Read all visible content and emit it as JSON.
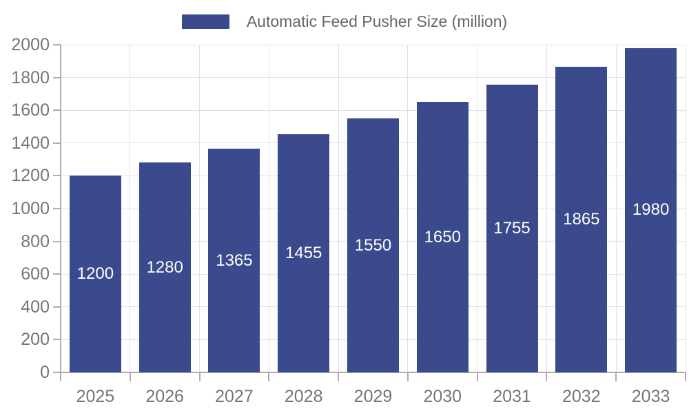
{
  "chart_data": {
    "type": "bar",
    "title": "Automatic Feed Pusher Size (million)",
    "legend": [
      "Automatic Feed Pusher Size (million)"
    ],
    "legend_position": "top",
    "categories": [
      "2025",
      "2026",
      "2027",
      "2028",
      "2029",
      "2030",
      "2031",
      "2032",
      "2033"
    ],
    "values": [
      1200,
      1280,
      1365,
      1455,
      1550,
      1650,
      1755,
      1865,
      1980
    ],
    "value_labels_shown": true,
    "xlabel": "",
    "ylabel": "",
    "ylim": [
      0,
      2000
    ],
    "yticks": [
      0,
      200,
      400,
      600,
      800,
      1000,
      1200,
      1400,
      1600,
      1800,
      2000
    ],
    "grid": true,
    "colors": {
      "bar": "#3A4A8C",
      "bar_value_label": "#FFFFFF",
      "grid": "#E0E0E0",
      "axis": "#ADADAD",
      "tick_label": "#757575",
      "legend_text": "#666666",
      "background": "#FFFFFF"
    }
  }
}
